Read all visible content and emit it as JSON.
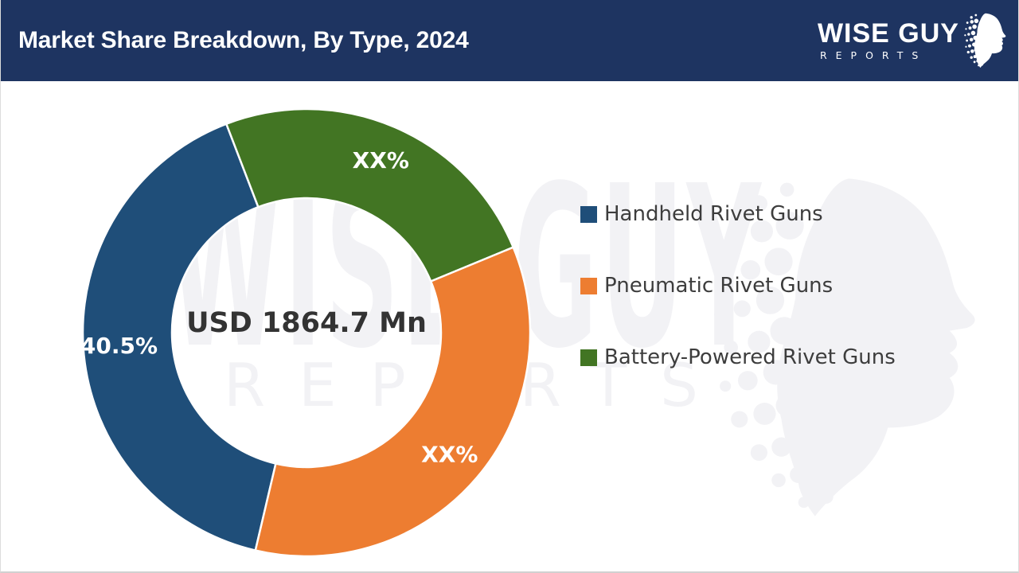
{
  "header": {
    "title": "Market Share Breakdown, By Type, 2024"
  },
  "brand": {
    "name": "WISE GUY",
    "subtitle": "REPORTS"
  },
  "watermark": {
    "primary": "WISE GUY",
    "secondary": "REPORTS"
  },
  "colors": {
    "header_bg": "#1e3461",
    "title_text": "#ffffff",
    "center_text": "#333333",
    "legend_text": "#3d3d3d",
    "watermark": "#f2f2f5",
    "border": "#d9d9d9",
    "background": "#ffffff"
  },
  "chart_data": {
    "type": "pie",
    "subtype": "donut",
    "title": "Market Share Breakdown, By Type, 2024",
    "center_label": "USD 1864.7 Mn",
    "hole_ratio": 0.6,
    "rotation_deg": 193.2,
    "direction": "clockwise",
    "draw_order": [
      0,
      2,
      1
    ],
    "legend_position": "right",
    "grid": false,
    "segments": [
      {
        "name": "Handheld Rivet Guns",
        "slice_label": "40.5%",
        "pct": 40.5,
        "pct_estimated": false,
        "color": "#1f4e79"
      },
      {
        "name": "Pneumatic Rivet Guns",
        "slice_label": "XX%",
        "pct": 34.9,
        "pct_estimated": true,
        "color": "#ed7d31"
      },
      {
        "name": "Battery-Powered Rivet Guns",
        "slice_label": "XX%",
        "pct": 24.6,
        "pct_estimated": true,
        "color": "#427523"
      }
    ]
  }
}
